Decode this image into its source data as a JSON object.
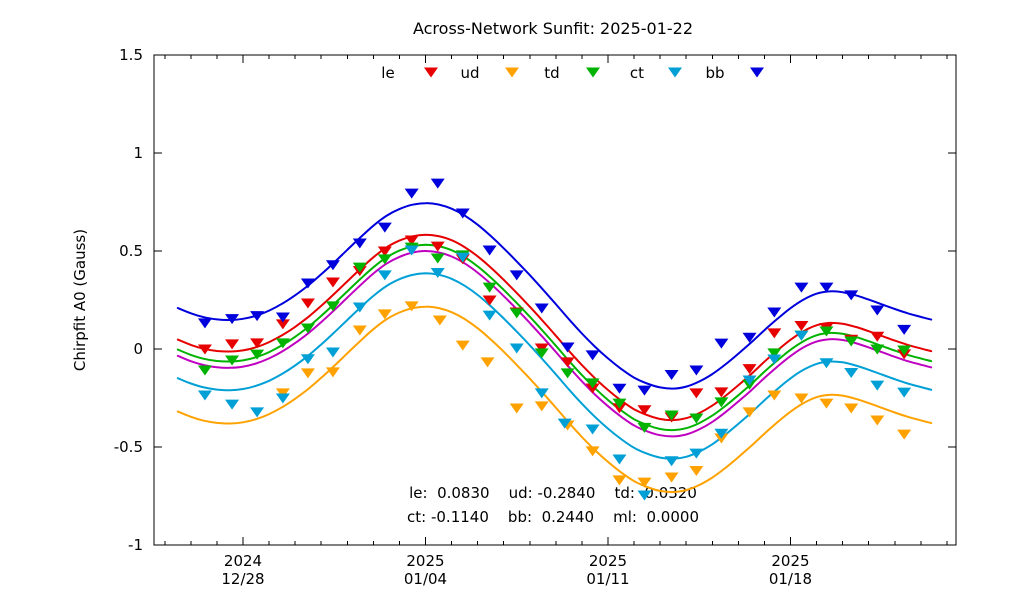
{
  "chart_data": {
    "type": "line+scatter",
    "title": "Across-Network Sunfit: 2025-01-22",
    "ylabel": "Chirpfit A0 (Gauss)",
    "marker": "triangle-down",
    "background": "#ffffff",
    "axis_color": "#000000",
    "y_axis": {
      "range": [
        -1,
        1.5
      ],
      "ticks": [
        {
          "v": 1.5,
          "label": "1.5"
        },
        {
          "v": 1.0,
          "label": "1"
        },
        {
          "v": 0.5,
          "label": "0.5"
        },
        {
          "v": 0.0,
          "label": "0"
        },
        {
          "v": -0.5,
          "label": "-0.5"
        },
        {
          "v": -1.0,
          "label": "-1"
        }
      ]
    },
    "x_axis": {
      "unit": "days from 2024-12-28",
      "range_days": [
        -3.41,
        27.35
      ],
      "minor_tick_every_days": 1,
      "major_ticks": [
        {
          "t": 0,
          "year": "2024",
          "date": "12/28"
        },
        {
          "t": 7,
          "year": "2025",
          "date": "01/04"
        },
        {
          "t": 14,
          "year": "2025",
          "date": "01/11"
        },
        {
          "t": 21,
          "year": "2025",
          "date": "01/18"
        }
      ]
    },
    "legend": {
      "position": "top-center",
      "entries": [
        "le",
        "ud",
        "td",
        "ct",
        "bb"
      ]
    },
    "stats_line1": "le:  0.0830    ud: -0.2840    td:  0.0320",
    "stats_line2": "ct: -0.1140    bb:  0.2440    ml:  0.0000",
    "stats": {
      "le": 0.083,
      "ud": -0.284,
      "td": 0.032,
      "ct": -0.114,
      "bb": 0.244,
      "ml": 0.0
    },
    "base_curve": {
      "name": "ml",
      "color": "#c000c0",
      "samples": [
        [
          -2.5,
          -0.035
        ],
        [
          -2,
          -0.062
        ],
        [
          -1.5,
          -0.082
        ],
        [
          -1,
          -0.093
        ],
        [
          -0.5,
          -0.096
        ],
        [
          0,
          -0.09
        ],
        [
          0.5,
          -0.074
        ],
        [
          1,
          -0.048
        ],
        [
          1.5,
          -0.013
        ],
        [
          2,
          0.03
        ],
        [
          2.5,
          0.08
        ],
        [
          3,
          0.137
        ],
        [
          3.5,
          0.198
        ],
        [
          4,
          0.262
        ],
        [
          4.5,
          0.325
        ],
        [
          5,
          0.385
        ],
        [
          5.5,
          0.435
        ],
        [
          6,
          0.47
        ],
        [
          6.5,
          0.492
        ],
        [
          7,
          0.5
        ],
        [
          7.5,
          0.493
        ],
        [
          8,
          0.472
        ],
        [
          8.5,
          0.437
        ],
        [
          9,
          0.39
        ],
        [
          9.5,
          0.333
        ],
        [
          10,
          0.27
        ],
        [
          10.5,
          0.203
        ],
        [
          11,
          0.133
        ],
        [
          11.5,
          0.06
        ],
        [
          12,
          -0.015
        ],
        [
          12.5,
          -0.092
        ],
        [
          13,
          -0.165
        ],
        [
          13.5,
          -0.232
        ],
        [
          14,
          -0.292
        ],
        [
          14.5,
          -0.345
        ],
        [
          15,
          -0.39
        ],
        [
          15.5,
          -0.42
        ],
        [
          16,
          -0.44
        ],
        [
          16.5,
          -0.446
        ],
        [
          17,
          -0.436
        ],
        [
          17.5,
          -0.41
        ],
        [
          18,
          -0.372
        ],
        [
          18.5,
          -0.323
        ],
        [
          19,
          -0.268
        ],
        [
          19.5,
          -0.21
        ],
        [
          20,
          -0.148
        ],
        [
          20.5,
          -0.09
        ],
        [
          21,
          -0.036
        ],
        [
          21.5,
          0.008
        ],
        [
          22,
          0.038
        ],
        [
          22.5,
          0.05
        ],
        [
          23,
          0.046
        ],
        [
          23.5,
          0.03
        ],
        [
          24,
          0.008
        ],
        [
          24.5,
          -0.016
        ],
        [
          25,
          -0.04
        ],
        [
          25.5,
          -0.062
        ],
        [
          26,
          -0.08
        ],
        [
          26.4,
          -0.094
        ]
      ]
    },
    "series": [
      {
        "name": "le",
        "color": "#e60000",
        "offset": 0.083,
        "points": [
          [
            -1.46,
            0.0
          ],
          [
            -0.42,
            0.026
          ],
          [
            0.54,
            0.031
          ],
          [
            1.53,
            0.128
          ],
          [
            2.49,
            0.235
          ],
          [
            3.45,
            0.342
          ],
          [
            4.48,
            0.4
          ],
          [
            5.44,
            0.5
          ],
          [
            6.47,
            0.556
          ],
          [
            7.47,
            0.525
          ],
          [
            8.43,
            0.46
          ],
          [
            9.46,
            0.25
          ],
          [
            10.5,
            0.189
          ],
          [
            11.46,
            0.005
          ],
          [
            12.45,
            -0.066
          ],
          [
            13.41,
            -0.199
          ],
          [
            14.44,
            -0.3
          ],
          [
            15.4,
            -0.31
          ],
          [
            16.44,
            -0.347
          ],
          [
            17.39,
            -0.224
          ],
          [
            18.35,
            -0.219
          ],
          [
            19.43,
            -0.1
          ],
          [
            20.38,
            0.082
          ],
          [
            21.42,
            0.12
          ],
          [
            22.38,
            0.11
          ],
          [
            23.33,
            0.05
          ],
          [
            24.33,
            0.065
          ],
          [
            25.36,
            -0.025
          ]
        ]
      },
      {
        "name": "ud",
        "color": "#ffa200",
        "offset": -0.284,
        "points": [
          [
            1.53,
            -0.224
          ],
          [
            2.49,
            -0.122
          ],
          [
            3.45,
            -0.117
          ],
          [
            4.48,
            0.097
          ],
          [
            5.44,
            0.179
          ],
          [
            6.47,
            0.22
          ],
          [
            7.55,
            0.148
          ],
          [
            8.43,
            0.02
          ],
          [
            9.38,
            -0.066
          ],
          [
            10.5,
            -0.301
          ],
          [
            11.46,
            -0.29
          ],
          [
            12.45,
            -0.388
          ],
          [
            13.41,
            -0.52
          ],
          [
            14.44,
            -0.668
          ],
          [
            15.4,
            -0.679
          ],
          [
            16.44,
            -0.653
          ],
          [
            17.39,
            -0.62
          ],
          [
            18.35,
            -0.454
          ],
          [
            19.43,
            -0.321
          ],
          [
            20.38,
            -0.235
          ],
          [
            21.42,
            -0.25
          ],
          [
            22.38,
            -0.276
          ],
          [
            23.33,
            -0.301
          ],
          [
            24.33,
            -0.362
          ],
          [
            25.36,
            -0.434
          ]
        ]
      },
      {
        "name": "td",
        "color": "#00b300",
        "offset": 0.032,
        "points": [
          [
            -1.46,
            -0.107
          ],
          [
            -0.42,
            -0.056
          ],
          [
            0.54,
            -0.026
          ],
          [
            1.53,
            0.031
          ],
          [
            2.49,
            0.107
          ],
          [
            3.45,
            0.22
          ],
          [
            4.48,
            0.418
          ],
          [
            5.44,
            0.46
          ],
          [
            6.47,
            0.52
          ],
          [
            7.47,
            0.464
          ],
          [
            8.43,
            0.48
          ],
          [
            9.46,
            0.316
          ],
          [
            10.5,
            0.184
          ],
          [
            11.46,
            -0.02
          ],
          [
            12.45,
            -0.122
          ],
          [
            13.41,
            -0.173
          ],
          [
            14.44,
            -0.276
          ],
          [
            15.4,
            -0.4
          ],
          [
            16.44,
            -0.337
          ],
          [
            17.39,
            -0.352
          ],
          [
            18.35,
            -0.27
          ],
          [
            19.43,
            -0.18
          ],
          [
            20.38,
            -0.02
          ],
          [
            21.42,
            0.071
          ],
          [
            22.38,
            0.092
          ],
          [
            23.33,
            0.041
          ],
          [
            24.33,
            0.0
          ],
          [
            25.36,
            -0.005
          ]
        ]
      },
      {
        "name": "ct",
        "color": "#00a0d6",
        "offset": -0.114,
        "points": [
          [
            -1.46,
            -0.235
          ],
          [
            -0.42,
            -0.281
          ],
          [
            0.54,
            -0.321
          ],
          [
            1.53,
            -0.25
          ],
          [
            2.49,
            -0.05
          ],
          [
            3.45,
            -0.015
          ],
          [
            4.48,
            0.214
          ],
          [
            5.44,
            0.378
          ],
          [
            6.47,
            0.505
          ],
          [
            7.47,
            0.39
          ],
          [
            8.43,
            0.469
          ],
          [
            9.46,
            0.173
          ],
          [
            10.5,
            0.005
          ],
          [
            11.46,
            -0.224
          ],
          [
            12.34,
            -0.378
          ],
          [
            13.41,
            -0.408
          ],
          [
            14.44,
            -0.561
          ],
          [
            15.4,
            -0.745
          ],
          [
            16.44,
            -0.57
          ],
          [
            17.39,
            -0.531
          ],
          [
            18.35,
            -0.43
          ],
          [
            19.43,
            -0.158
          ],
          [
            20.38,
            -0.051
          ],
          [
            21.42,
            0.07
          ],
          [
            22.38,
            -0.07
          ],
          [
            23.33,
            -0.12
          ],
          [
            24.33,
            -0.184
          ],
          [
            25.36,
            -0.22
          ]
        ]
      },
      {
        "name": "bb",
        "color": "#0000dd",
        "offset": 0.244,
        "points": [
          [
            -1.46,
            0.133
          ],
          [
            -0.42,
            0.155
          ],
          [
            0.54,
            0.17
          ],
          [
            1.53,
            0.163
          ],
          [
            2.49,
            0.337
          ],
          [
            3.45,
            0.43
          ],
          [
            4.48,
            0.541
          ],
          [
            5.44,
            0.622
          ],
          [
            6.47,
            0.795
          ],
          [
            7.47,
            0.846
          ],
          [
            8.43,
            0.694
          ],
          [
            9.46,
            0.505
          ],
          [
            10.5,
            0.378
          ],
          [
            11.46,
            0.209
          ],
          [
            12.45,
            0.01
          ],
          [
            13.41,
            -0.03
          ],
          [
            14.44,
            -0.2
          ],
          [
            15.4,
            -0.21
          ],
          [
            16.44,
            -0.13
          ],
          [
            17.39,
            -0.107
          ],
          [
            18.35,
            0.03
          ],
          [
            19.43,
            0.06
          ],
          [
            20.38,
            0.189
          ],
          [
            21.42,
            0.316
          ],
          [
            22.38,
            0.316
          ],
          [
            23.33,
            0.276
          ],
          [
            24.33,
            0.199
          ],
          [
            25.36,
            0.1
          ]
        ]
      }
    ]
  }
}
